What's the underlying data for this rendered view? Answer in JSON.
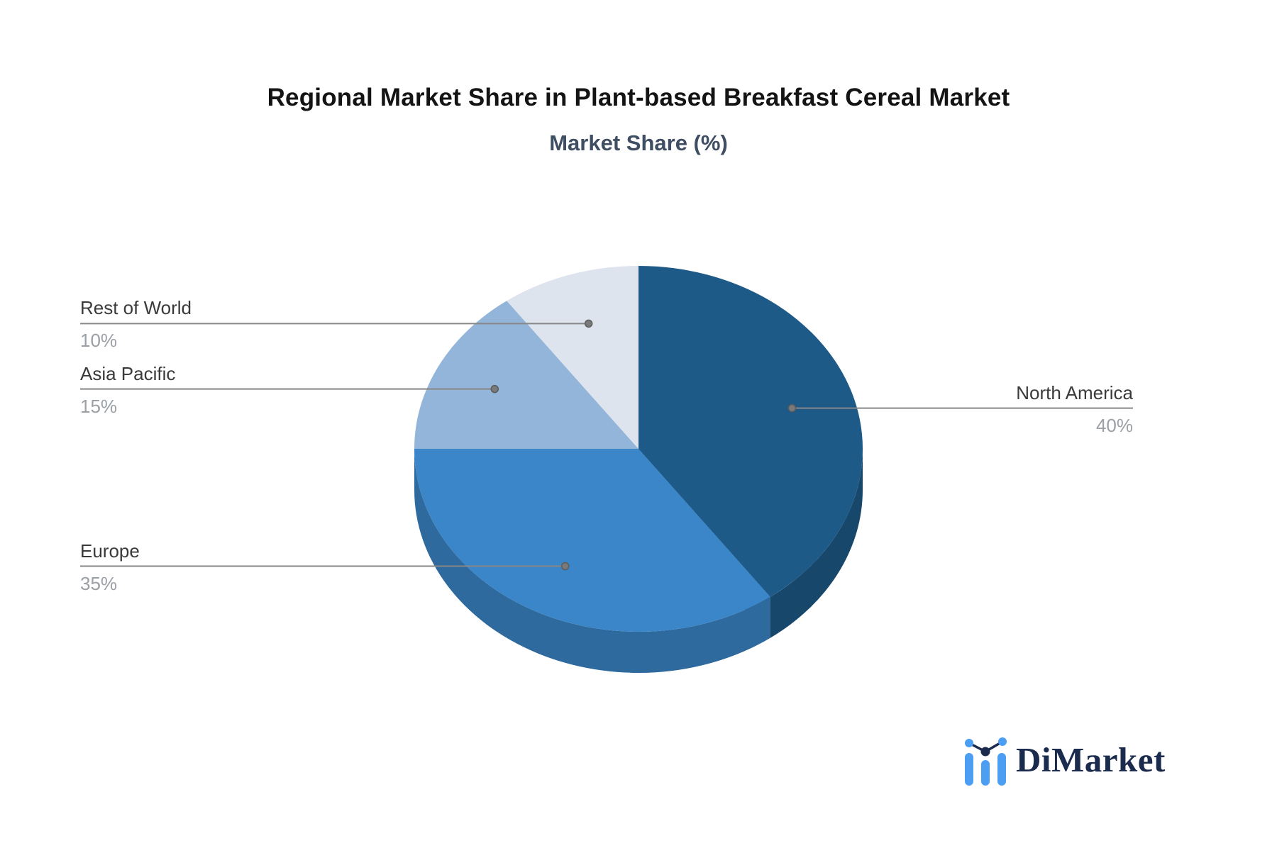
{
  "title": "Regional Market Share in Plant-based Breakfast Cereal Market",
  "subtitle": "Market Share (%)",
  "chart_data": {
    "type": "pie",
    "style": "3d-extruded",
    "unit": "%",
    "start_angle_deg": 0,
    "direction": "clockwise",
    "slices": [
      {
        "name": "North America",
        "value": 40,
        "pct_label": "40%",
        "color": "#1d5a88",
        "label_side": "right"
      },
      {
        "name": "Europe",
        "value": 35,
        "pct_label": "35%",
        "color": "#3a86c8",
        "label_side": "left"
      },
      {
        "name": "Asia Pacific",
        "value": 15,
        "pct_label": "15%",
        "color": "#93b5d9",
        "label_side": "left"
      },
      {
        "name": "Rest of World",
        "value": 10,
        "pct_label": "10%",
        "color": "#dde4ee",
        "label_side": "left"
      }
    ],
    "leader_line_color": "#878787",
    "leader_dot_color": "#7a7a7a",
    "label_color": "#3a3a3a",
    "pct_color": "#9aa0a6",
    "title_color": "#141414",
    "subtitle_color": "#3f4e63",
    "legend": "none",
    "grid": "off"
  },
  "logo": {
    "text": "DiMarket",
    "bar_color": "#4b9ef2",
    "dark_color": "#1b2b4d"
  }
}
